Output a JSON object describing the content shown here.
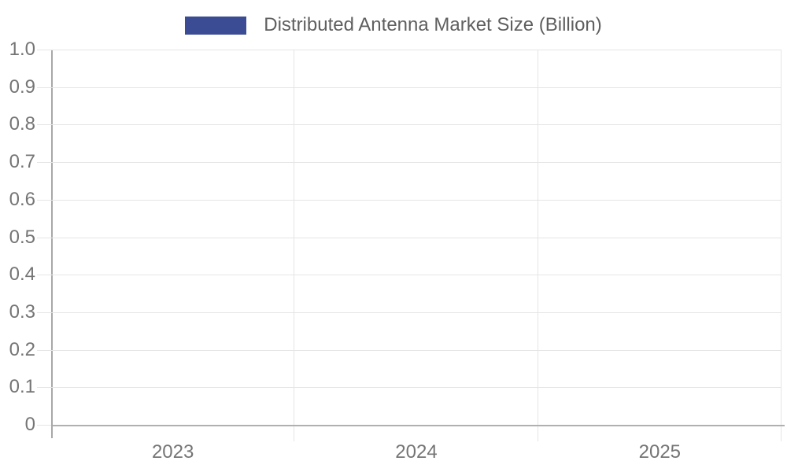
{
  "legend": {
    "label": "Distributed Antenna Market Size (Billion)"
  },
  "colors": {
    "series": "#3B4B94",
    "grid": "#e5e5e5",
    "x_axis": "#b0b0b0",
    "y_axis": "#a8a8a8",
    "axis_text": "#757575",
    "legend_text": "#5f5f5f"
  },
  "chart_data": {
    "type": "bar",
    "title": "",
    "categories": [
      "2023",
      "2024",
      "2025"
    ],
    "series": [
      {
        "name": "Distributed Antenna Market Size (Billion)",
        "color": "#3B4B94",
        "values": [
          null,
          null,
          null
        ]
      }
    ],
    "xlabel": "",
    "ylabel": "",
    "ylim": [
      0,
      1.0
    ],
    "yticks": [
      "1.0",
      "0.9",
      "0.8",
      "0.7",
      "0.6",
      "0.5",
      "0.4",
      "0.3",
      "0.2",
      "0.1",
      "0"
    ],
    "grid": true,
    "legend_position": "top-center",
    "note": "no data rendered in plot area"
  }
}
